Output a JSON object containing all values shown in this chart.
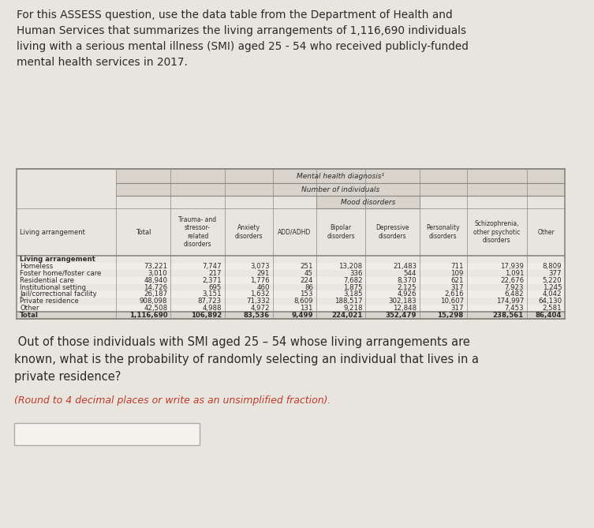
{
  "intro_text": "For this ASSESS question, use the data table from the Department of Health and\nHuman Services that summarizes the living arrangements of 1,116,690 individuals\nliving with a serious mental illness (SMI) aged 25 - 54 who received publicly-funded\nmental health services in 2017.",
  "header1": "Mental health diagnosis¹",
  "header2": "Number of individuals",
  "mood_disorder_header": "Mood disorders",
  "row_label_header": "Living arrangement",
  "col_headers_line1": [
    "",
    "Trauma- and\nstressor-\nrelated\ndisorders",
    "Anxiety\ndisorders",
    "ADD/ADHD",
    "Bipolar\ndisorders",
    "Depressive\ndisorders",
    "Personality\ndisorders",
    "Schizophrenia,\nother psychotic\ndisorders",
    "Other"
  ],
  "col_footer": [
    "Total",
    "",
    "",
    "",
    "",
    "",
    "",
    "",
    ""
  ],
  "rows": [
    {
      "label": "Living arrangement",
      "values": [
        "",
        "",
        "",
        "",
        "",
        "",
        "",
        "",
        ""
      ],
      "bold": true,
      "header_row": true
    },
    {
      "label": "Homeless",
      "values": [
        "73,221",
        "7,747",
        "3,073",
        "251",
        "13,208",
        "21,483",
        "711",
        "17,939",
        "8,809"
      ],
      "bold": false
    },
    {
      "label": "Foster home/foster care",
      "values": [
        "3,010",
        "217",
        "291",
        "45",
        "336",
        "544",
        "109",
        "1,091",
        "377"
      ],
      "bold": false
    },
    {
      "label": "Residential care",
      "values": [
        "48,940",
        "2,371",
        "1,776",
        "224",
        "7,682",
        "8,370",
        "621",
        "22,676",
        "5,220"
      ],
      "bold": false
    },
    {
      "label": "Institutional setting",
      "values": [
        "14,726",
        "695",
        "460",
        "86",
        "1,875",
        "2,125",
        "317",
        "7,923",
        "1,245"
      ],
      "bold": false
    },
    {
      "label": "Jail/correctional facility",
      "values": [
        "26,187",
        "3,151",
        "1,632",
        "153",
        "3,185",
        "4,926",
        "2,616",
        "6,482",
        "4,042"
      ],
      "bold": false
    },
    {
      "label": "Private residence",
      "values": [
        "908,098",
        "87,723",
        "71,332",
        "8,609",
        "188,517",
        "302,183",
        "10,607",
        "174,997",
        "64,130"
      ],
      "bold": false
    },
    {
      "label": "Other",
      "values": [
        "42,508",
        "4,988",
        "4,972",
        "131",
        "9,218",
        "12,848",
        "317",
        "7,453",
        "2,581"
      ],
      "bold": false
    }
  ],
  "total_row": {
    "label": "Total",
    "values": [
      "1,116,690",
      "106,892",
      "83,536",
      "9,499",
      "224,021",
      "352,479",
      "15,298",
      "238,561",
      "86,404"
    ]
  },
  "question_text": " Out of those individuals with SMI aged 25 – 54 whose living arrangements are\nknown, what is the probability of randomly selecting an individual that lives in a\nprivate residence?",
  "footnote": "(Round to 4 decimal places or write as an unsimplified fraction).",
  "footnote_color": "#c0392b",
  "bg_color": "#e8e5df",
  "text_color": "#2a2a2a",
  "table_line_color": "#888880",
  "table_header_bg": "#d8d4cc",
  "table_row_bg1": "#eae7e0",
  "table_row_bg2": "#f0ede8"
}
